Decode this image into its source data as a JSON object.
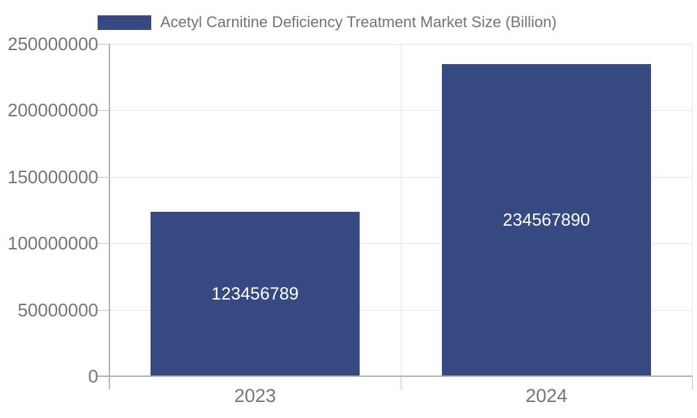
{
  "chart_data": {
    "type": "bar",
    "title": "Acetyl Carnitine Deficiency Treatment Market Size (Billion)",
    "categories": [
      "2023",
      "2024"
    ],
    "values": [
      123456789,
      234567890
    ],
    "value_labels": [
      "123456789",
      "234567890"
    ],
    "ylim": [
      0,
      250000000
    ],
    "yticks": [
      0,
      50000000,
      100000000,
      150000000,
      200000000,
      250000000
    ],
    "ytick_labels": [
      "0",
      "50000000",
      "100000000",
      "150000000",
      "200000000",
      "250000000"
    ],
    "xlabel": "",
    "ylabel": "",
    "grid": true,
    "legend_position": "top",
    "bar_color": "#364A81",
    "value_label_color": "#FFFFFF",
    "axis_text_color": "#757575"
  }
}
